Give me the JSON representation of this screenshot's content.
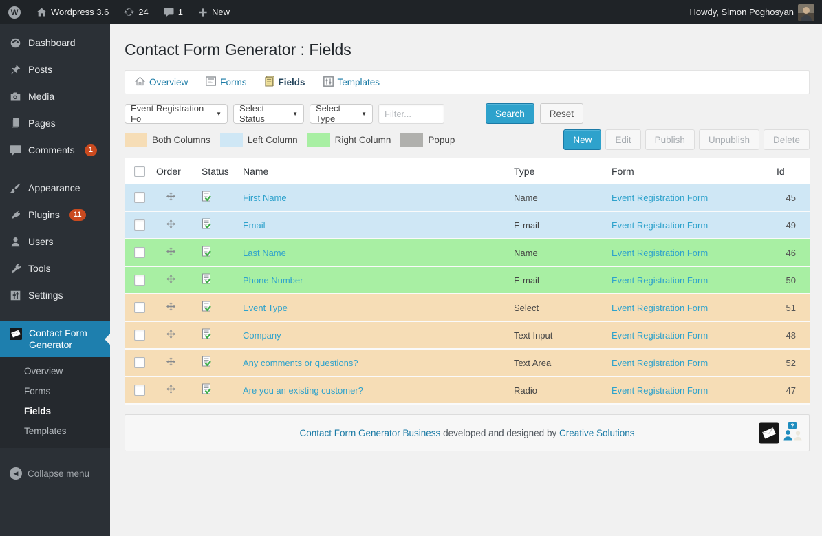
{
  "colors": {
    "accent": "#2ea2cc",
    "menu_active": "#1e7fae",
    "badge": "#ca4a1f"
  },
  "admin_bar": {
    "site_name": "Wordpress 3.6",
    "update_count": "24",
    "comment_count": "1",
    "new_label": "New",
    "howdy": "Howdy, Simon Poghosyan"
  },
  "sidebar": {
    "items": [
      {
        "label": "Dashboard"
      },
      {
        "label": "Posts"
      },
      {
        "label": "Media"
      },
      {
        "label": "Pages"
      },
      {
        "label": "Comments",
        "badge": "1"
      },
      {
        "label": "Appearance"
      },
      {
        "label": "Plugins",
        "badge": "11"
      },
      {
        "label": "Users"
      },
      {
        "label": "Tools"
      },
      {
        "label": "Settings"
      },
      {
        "label": "Contact Form Generator"
      }
    ],
    "submenu": {
      "items": [
        {
          "label": "Overview"
        },
        {
          "label": "Forms"
        },
        {
          "label": "Fields"
        },
        {
          "label": "Templates"
        }
      ]
    },
    "collapse_label": "Collapse menu"
  },
  "page": {
    "title": "Contact Form Generator : Fields"
  },
  "tabs": [
    {
      "label": "Overview"
    },
    {
      "label": "Forms"
    },
    {
      "label": "Fields"
    },
    {
      "label": "Templates"
    }
  ],
  "filters": {
    "form_select_value": "Event Registration Fo",
    "status_select_value": "Select Status",
    "type_select_value": "Select Type",
    "filter_placeholder": "Filter...",
    "search_label": "Search",
    "reset_label": "Reset"
  },
  "legend": {
    "items": [
      {
        "key": "both",
        "label": "Both Columns",
        "color": "#f6ddb6"
      },
      {
        "key": "left",
        "label": "Left Column",
        "color": "#cfe7f5"
      },
      {
        "key": "right",
        "label": "Right Column",
        "color": "#a8efa3"
      },
      {
        "key": "popup",
        "label": "Popup",
        "color": "#b0b0ad"
      }
    ]
  },
  "actions": {
    "new_label": "New",
    "edit_label": "Edit",
    "publish_label": "Publish",
    "unpublish_label": "Unpublish",
    "delete_label": "Delete"
  },
  "table": {
    "headers": {
      "order": "Order",
      "status": "Status",
      "name": "Name",
      "type": "Type",
      "form": "Form",
      "id": "Id"
    },
    "rows": [
      {
        "zone": "left",
        "name": "First Name",
        "type": "Name",
        "form": "Event Registration Form",
        "id": "45"
      },
      {
        "zone": "left",
        "name": "Email",
        "type": "E-mail",
        "form": "Event Registration Form",
        "id": "49"
      },
      {
        "zone": "right",
        "name": "Last Name",
        "type": "Name",
        "form": "Event Registration Form",
        "id": "46"
      },
      {
        "zone": "right",
        "name": "Phone Number",
        "type": "E-mail",
        "form": "Event Registration Form",
        "id": "50"
      },
      {
        "zone": "both",
        "name": "Event Type",
        "type": "Select",
        "form": "Event Registration Form",
        "id": "51"
      },
      {
        "zone": "both",
        "name": "Company",
        "type": "Text Input",
        "form": "Event Registration Form",
        "id": "48"
      },
      {
        "zone": "both",
        "name": "Any comments or questions?",
        "type": "Text Area",
        "form": "Event Registration Form",
        "id": "52"
      },
      {
        "zone": "both",
        "name": "Are you an existing customer?",
        "type": "Radio",
        "form": "Event Registration Form",
        "id": "47"
      }
    ]
  },
  "footer": {
    "product_link": "Contact Form Generator Business",
    "middle_text": " developed and designed by ",
    "vendor_link": "Creative Solutions"
  }
}
